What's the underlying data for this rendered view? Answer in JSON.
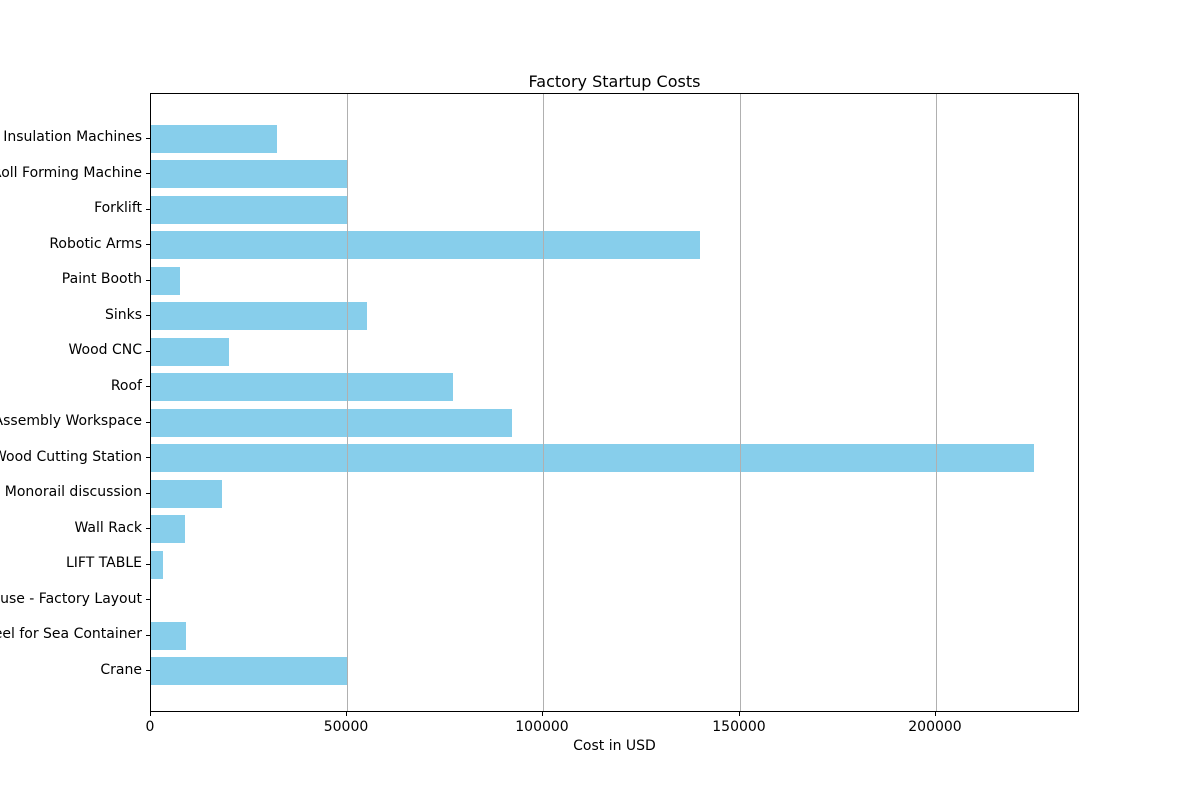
{
  "chart_data": {
    "type": "bar",
    "orientation": "horizontal",
    "title": "Factory Startup Costs",
    "xlabel": "Cost in USD",
    "ylabel": "",
    "categories": [
      "Insulation Machines",
      "Roll Forming Machine",
      "Forklift",
      "Robotic Arms",
      "Paint Booth",
      "Sinks",
      "Wood CNC",
      "Roof",
      "Assembly Workspace",
      "Wood Cutting Station",
      "Monorail discussion",
      "Wall Rack",
      "LIFT TABLE",
      "Warehouse - Factory Layout",
      "Steel for Sea Container",
      "Crane"
    ],
    "values": [
      32000,
      50000,
      50000,
      140000,
      7500,
      55000,
      20000,
      77000,
      92000,
      225000,
      18000,
      8700,
      3000,
      0,
      9000,
      50000
    ],
    "xlim": [
      0,
      236250
    ],
    "xticks": [
      0,
      50000,
      100000,
      150000,
      200000
    ],
    "xtick_labels": [
      "0",
      "50000",
      "100000",
      "150000",
      "200000"
    ],
    "bar_color": "#87CEEB",
    "grid_color": "#b0b0b0",
    "spine_color": "#000000",
    "text_color": "#000000",
    "background_color": "#ffffff",
    "grid": "vertical",
    "grid_above_bars": true,
    "legend": "none"
  }
}
